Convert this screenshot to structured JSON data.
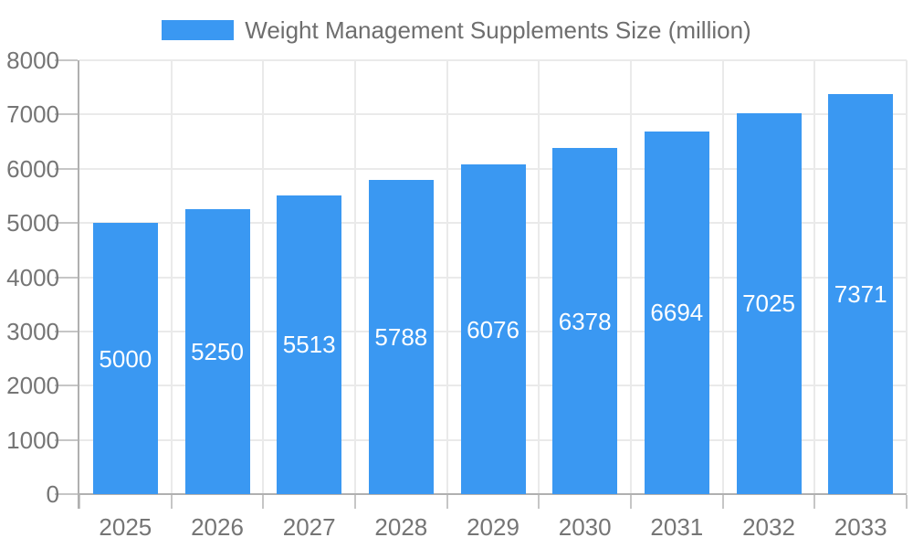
{
  "legend": {
    "label": "Weight Management Supplements Size (million)",
    "swatch_color": "#3a98f2"
  },
  "chart_data": {
    "type": "bar",
    "title": "Weight Management Supplements Size (million)",
    "categories": [
      "2025",
      "2026",
      "2027",
      "2028",
      "2029",
      "2030",
      "2031",
      "2032",
      "2033"
    ],
    "values": [
      5000,
      5250,
      5513,
      5788,
      6076,
      6378,
      6694,
      7025,
      7371
    ],
    "bar_labels": [
      "5000",
      "5250",
      "5513",
      "5788",
      "6076",
      "6378",
      "6694",
      "7025",
      "7371"
    ],
    "xlabel": "",
    "ylabel": "",
    "ylim": [
      0,
      8000
    ],
    "ytick_step": 1000,
    "ytick_labels": [
      "0",
      "1000",
      "2000",
      "3000",
      "4000",
      "5000",
      "6000",
      "7000",
      "8000"
    ],
    "grid": true,
    "legend_position": "top-center",
    "colors": {
      "bar": "#3a98f2",
      "bar_value_text": "#ffffff",
      "axis_text": "#757575",
      "legend_text": "#6e6e6e",
      "axis_line": "#b0b0b0",
      "tick": "#c6c6c6",
      "gridline": "#eaeaea",
      "background": "#ffffff"
    }
  }
}
